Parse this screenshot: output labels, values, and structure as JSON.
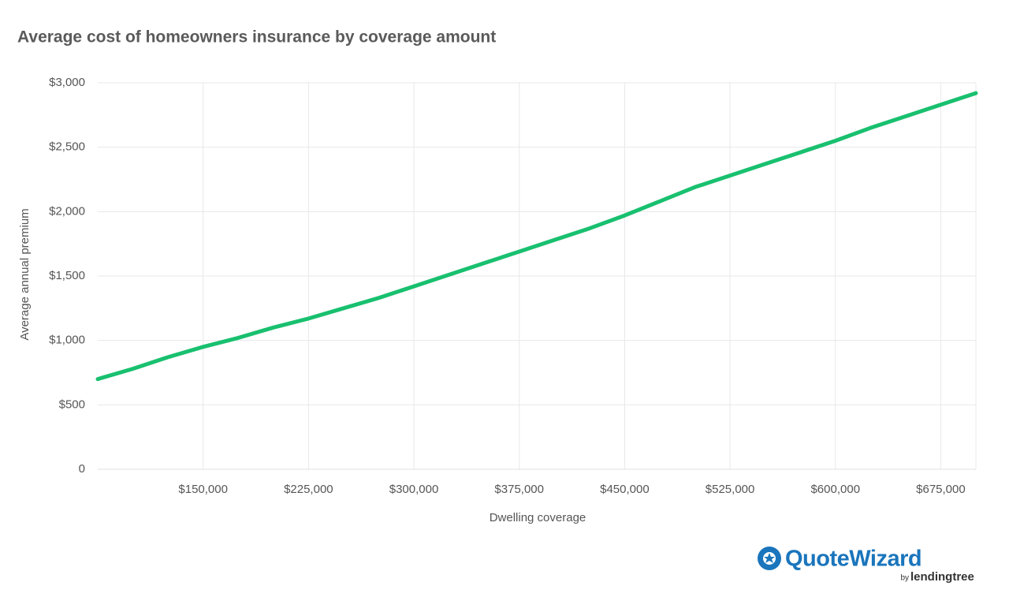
{
  "chart_data": {
    "type": "line",
    "title": "Average cost of homeowners insurance by coverage amount",
    "x_label": "Dwelling coverage",
    "y_label": "Average annual premium",
    "x": [
      75000,
      100000,
      125000,
      150000,
      175000,
      200000,
      225000,
      250000,
      275000,
      300000,
      325000,
      350000,
      375000,
      400000,
      425000,
      450000,
      475000,
      500000,
      525000,
      550000,
      575000,
      600000,
      625000,
      650000,
      675000,
      700000
    ],
    "series": [
      {
        "name": "Average annual premium",
        "color": "#19c06f",
        "values": [
          700,
          780,
          870,
          950,
          1020,
          1100,
          1170,
          1250,
          1330,
          1420,
          1510,
          1600,
          1690,
          1780,
          1870,
          1970,
          2080,
          2190,
          2280,
          2370,
          2460,
          2550,
          2650,
          2740,
          2830,
          2920
        ]
      }
    ],
    "xlim": [
      75000,
      700000
    ],
    "xticks": [
      {
        "value": 150000,
        "label": "$150,000"
      },
      {
        "value": 225000,
        "label": "$225,000"
      },
      {
        "value": 300000,
        "label": "$300,000"
      },
      {
        "value": 375000,
        "label": "$375,000"
      },
      {
        "value": 450000,
        "label": "$450,000"
      },
      {
        "value": 525000,
        "label": "$525,000"
      },
      {
        "value": 600000,
        "label": "$600,000"
      },
      {
        "value": 675000,
        "label": "$675,000"
      }
    ],
    "ylim": [
      0,
      3000
    ],
    "yticks": [
      0,
      {
        "value": 500,
        "label": "$500"
      },
      {
        "value": 1000,
        "label": "$1,000"
      },
      {
        "value": 1500,
        "label": "$1,500"
      },
      {
        "value": 2000,
        "label": "$2,000"
      },
      {
        "value": 2500,
        "label": "$2,500"
      },
      {
        "value": 3000,
        "label": "$3,000"
      }
    ],
    "grid": true
  },
  "logo": {
    "name": "QuoteWizard",
    "by": "by",
    "brand": "lendingtree"
  }
}
